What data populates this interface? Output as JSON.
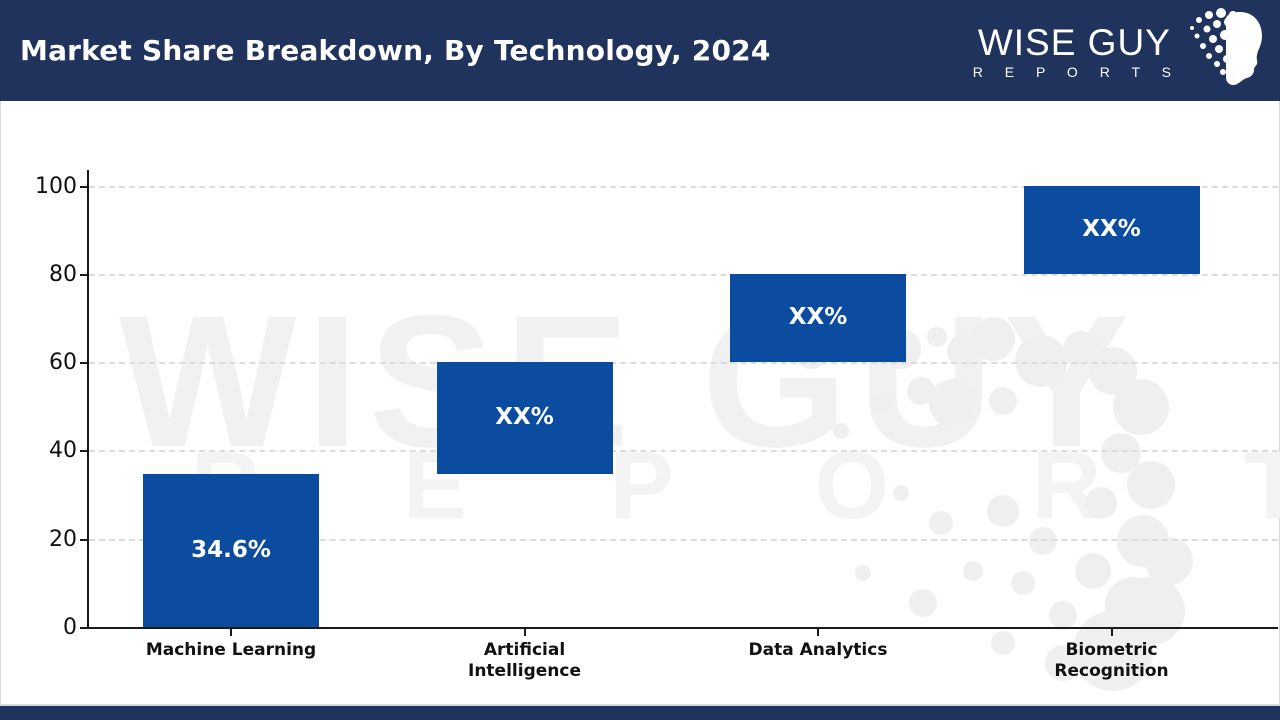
{
  "header": {
    "title": "Market Share Breakdown, By Technology, 2024",
    "bg_color": "#20335C",
    "logo": {
      "line1": "WISE GUY",
      "line2": "R E P O R T S"
    }
  },
  "watermark": {
    "line1": "WISE GUY",
    "line2": "R E P O R T S"
  },
  "chart_data": {
    "type": "bar",
    "subtype": "floating-waterfall",
    "title": "Market Share Breakdown, By Technology, 2024",
    "xlabel": "",
    "ylabel": "",
    "categories": [
      "Machine Learning",
      "Artificial Intelligence",
      "Data Analytics",
      "Biometric Recognition"
    ],
    "category_label_lines": [
      [
        "Machine Learning"
      ],
      [
        "Artificial",
        "Intelligence"
      ],
      [
        "Data Analytics"
      ],
      [
        "Biometric",
        "Recognition"
      ]
    ],
    "series": [
      {
        "name": "Market Share %",
        "segments": [
          {
            "category": "Machine Learning",
            "start": 0,
            "end": 34.6,
            "label": "34.6%"
          },
          {
            "category": "Artificial Intelligence",
            "start": 34.6,
            "end": 60,
            "label": "XX%"
          },
          {
            "category": "Data Analytics",
            "start": 60,
            "end": 80,
            "label": "XX%"
          },
          {
            "category": "Biometric Recognition",
            "start": 80,
            "end": 100,
            "label": "XX%"
          }
        ]
      }
    ],
    "yticks": [
      0,
      20,
      40,
      60,
      80,
      100
    ],
    "ylim": [
      0,
      103.5
    ],
    "grid": "horizontal-dashed",
    "legend": "none",
    "bar_color": "#0C4CA0",
    "bar_label_color": "#FFFFFF",
    "gridline_color": "#DCDCDC",
    "axis_color": "#1A1A1A"
  }
}
